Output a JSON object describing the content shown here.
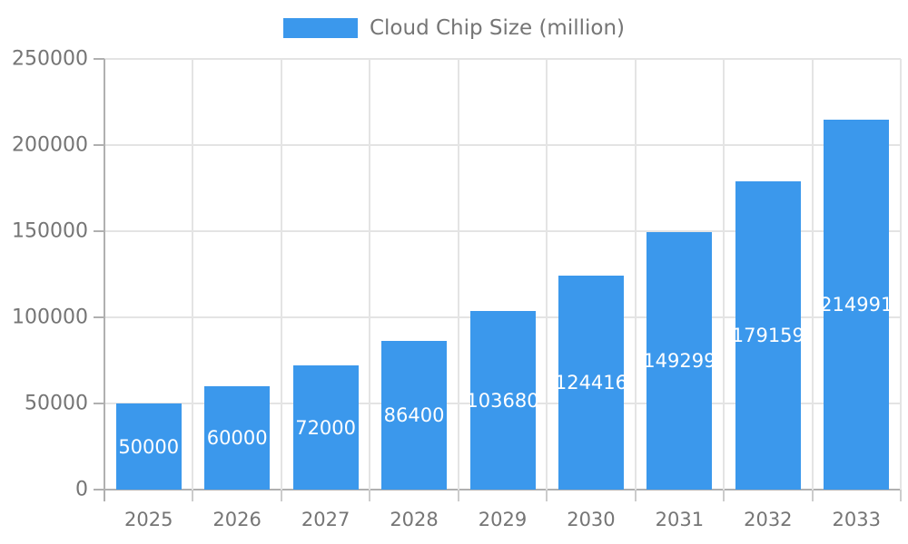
{
  "legend": {
    "label": "Cloud Chip Size (million)"
  },
  "chart_data": {
    "type": "bar",
    "title": "Cloud Chip Size (million)",
    "series_name": "Cloud Chip Size (million)",
    "categories": [
      "2025",
      "2026",
      "2027",
      "2028",
      "2029",
      "2030",
      "2031",
      "2032",
      "2033"
    ],
    "values": [
      50000,
      60000,
      72000,
      86400,
      103680,
      124416,
      149299,
      179159,
      214991
    ],
    "bar_value_labels": [
      "50000",
      "60000",
      "72000",
      "86400",
      "103680",
      "124416",
      "149299",
      "179159",
      "214991"
    ],
    "xlabel": "",
    "ylabel": "",
    "ylim": [
      0,
      250000
    ],
    "yticks": [
      0,
      50000,
      100000,
      150000,
      200000,
      250000
    ],
    "ytick_labels": [
      "0",
      "50000",
      "100000",
      "150000",
      "200000",
      "250000"
    ],
    "grid": true,
    "legend_position": "top-center",
    "value_label_position": "inside-center"
  },
  "colors": {
    "bar": "#3B98EC",
    "grid": "#E4E4E4",
    "axis": "#B0B0B0",
    "category_tick": "#CCCCCC",
    "text": "#757575",
    "bar_label": "#FFFFFF",
    "background": "#FFFFFF"
  }
}
